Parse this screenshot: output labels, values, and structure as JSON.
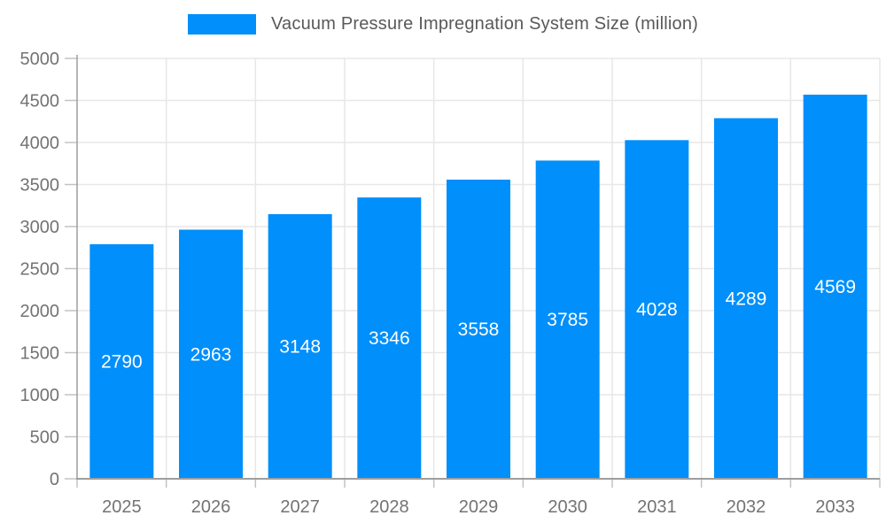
{
  "chart_data": {
    "type": "bar",
    "title": "Vacuum Pressure Impregnation System Size (million)",
    "legend": {
      "label": "Vacuum Pressure Impregnation System Size (million)",
      "position": "top"
    },
    "categories": [
      "2025",
      "2026",
      "2027",
      "2028",
      "2029",
      "2030",
      "2031",
      "2032",
      "2033"
    ],
    "series": [
      {
        "name": "Vacuum Pressure Impregnation System Size (million)",
        "values": [
          2790,
          2963,
          3148,
          3346,
          3558,
          3785,
          4028,
          4289,
          4569
        ]
      }
    ],
    "data_labels": [
      "2790",
      "2963",
      "3148",
      "3346",
      "3558",
      "3785",
      "4028",
      "4289",
      "4569"
    ],
    "xlabel": "",
    "ylabel": "",
    "ylim": [
      0,
      5000
    ],
    "ytick_step": 500,
    "yticks": [
      "0",
      "500",
      "1000",
      "1500",
      "2000",
      "2500",
      "3000",
      "3500",
      "4000",
      "4500",
      "5000"
    ],
    "grid": true,
    "colors": {
      "bar": "#008FFB",
      "bar_value_label": "#ffffff",
      "axis_tick_label": "#737373",
      "legend_text": "#595959",
      "gridline": "#e7e7e7",
      "axis_line": "#9e9e9e",
      "tick_mark": "#c2c2c2",
      "background": "#ffffff"
    }
  }
}
